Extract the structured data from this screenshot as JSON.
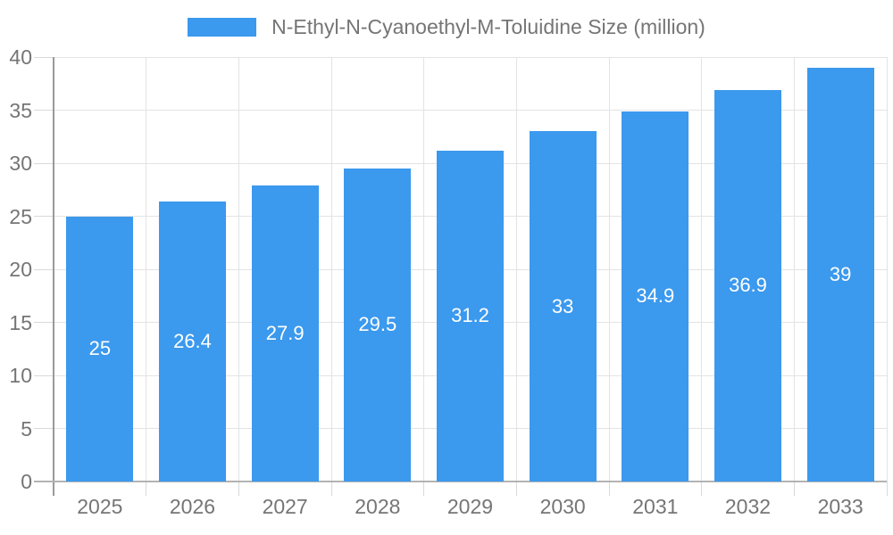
{
  "chart_data": {
    "type": "bar",
    "series_name": "N-Ethyl-N-Cyanoethyl-M-Toluidine Size (million)",
    "categories": [
      "2025",
      "2026",
      "2027",
      "2028",
      "2029",
      "2030",
      "2031",
      "2032",
      "2033"
    ],
    "values": [
      25,
      26.4,
      27.9,
      29.5,
      31.2,
      33,
      34.9,
      36.9,
      39
    ],
    "value_labels": [
      "25",
      "26.4",
      "27.9",
      "29.5",
      "31.2",
      "33",
      "34.9",
      "36.9",
      "39"
    ],
    "ylim": [
      0,
      40
    ],
    "ytick_step": 5,
    "ytick_labels": [
      "0",
      "5",
      "10",
      "15",
      "20",
      "25",
      "30",
      "35",
      "40"
    ],
    "grid": true,
    "legend_position": "top-center",
    "value_label_position": "inside-center",
    "colors": {
      "bar": "#3b99ee",
      "bar_label": "#ffffff",
      "grid": "#e3e3e3",
      "axis_y": "#9a9a9a",
      "axis_x": "#b3b3b3",
      "tick": "#d9d9d9",
      "tick_label": "#757575",
      "legend_text": "#757575",
      "background": "#ffffff"
    }
  }
}
